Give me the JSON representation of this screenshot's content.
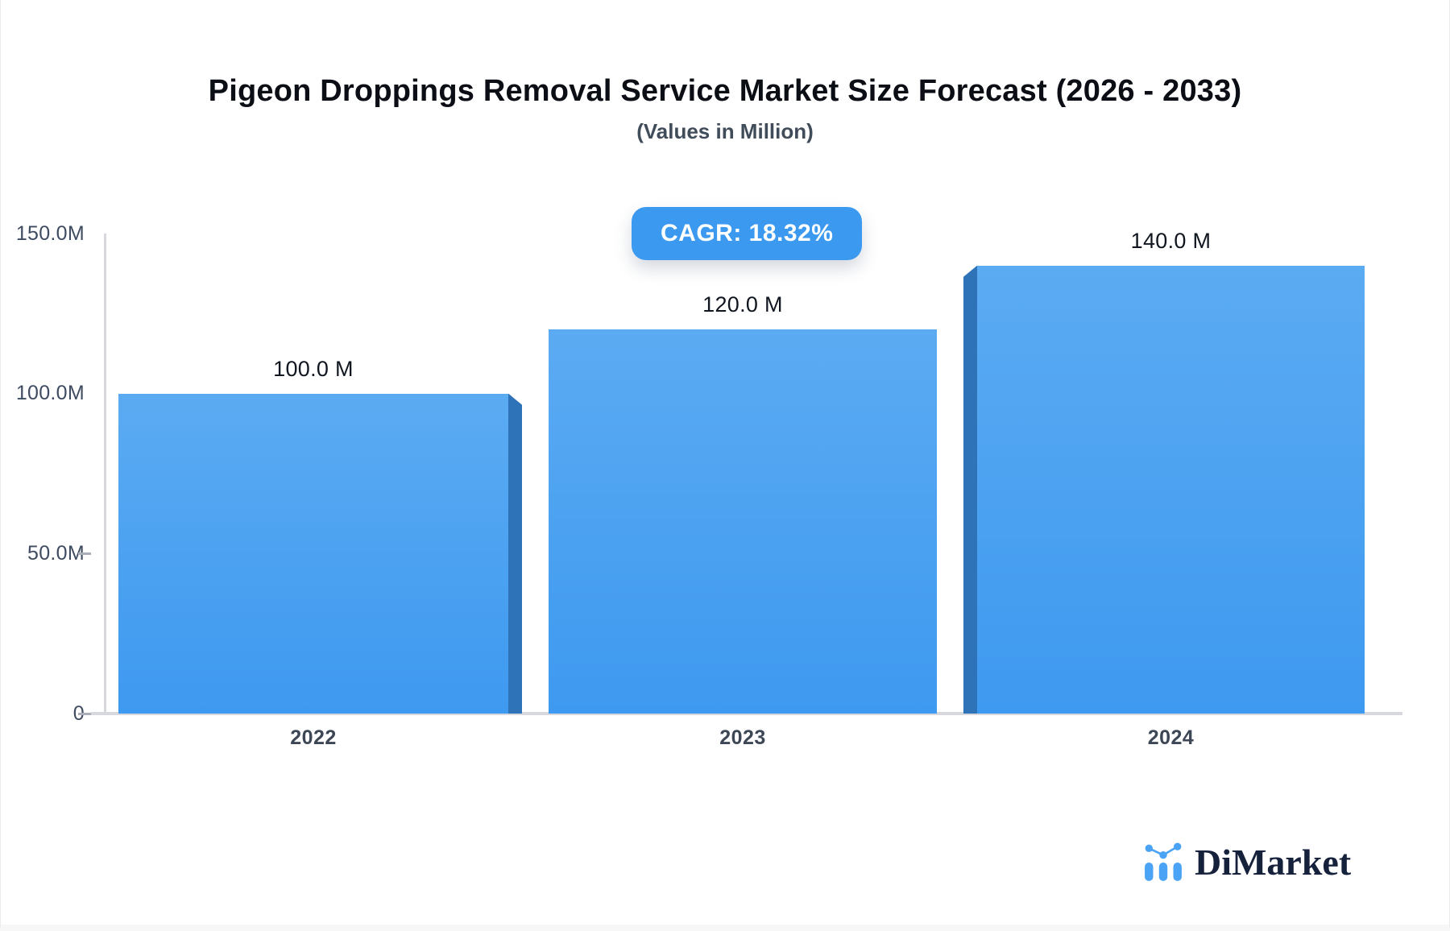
{
  "header": {
    "title": "Pigeon Droppings Removal Service Market Size Forecast (2026 - 2033)",
    "subtitle": "(Values in Million)"
  },
  "cagr_badge": {
    "label": "CAGR: 18.32%"
  },
  "chart_data": {
    "type": "bar",
    "title": "Pigeon Droppings Removal Service Market Size Forecast (2026 - 2033)",
    "subtitle": "(Values in Million)",
    "unit": "Million",
    "categories": [
      "2022",
      "2023",
      "2024"
    ],
    "values": [
      100,
      120,
      140
    ],
    "value_labels": [
      "100.0 M",
      "120.0 M",
      "140.0 M"
    ],
    "ylim": [
      0,
      150
    ],
    "y_ticks": [
      {
        "label": "150.0M",
        "value": 150,
        "tick_mark": false
      },
      {
        "label": "100.0M",
        "value": 100,
        "tick_mark": false
      },
      {
        "label": "50.0M",
        "value": 50,
        "tick_mark": true
      },
      {
        "label": "0",
        "value": 0,
        "tick_mark": true
      }
    ],
    "cagr": "18.32%",
    "grid": false,
    "legend": false,
    "colors": {
      "bar_top": "#5babf2",
      "bar_bottom": "#3e99f0",
      "bar_side": "#2e72b8",
      "badge": "#3b99f0",
      "axis": "#d7d8dd",
      "tick": "#a9aeb8"
    }
  },
  "logo": {
    "text": "DiMarket"
  }
}
